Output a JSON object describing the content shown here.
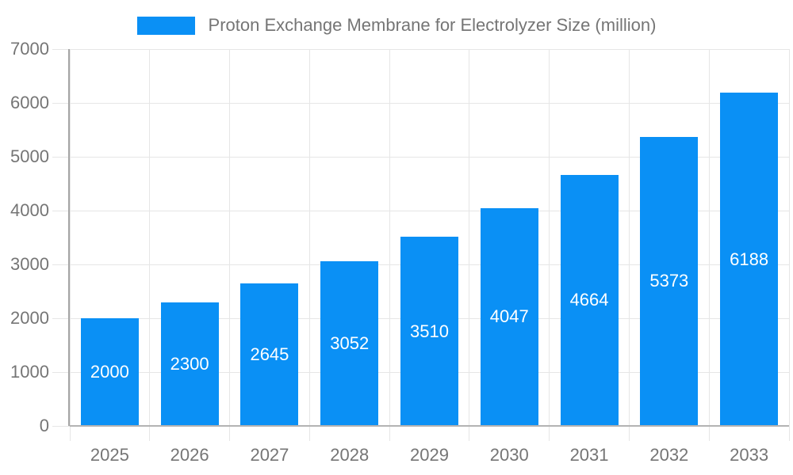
{
  "legend": {
    "label": "Proton Exchange Membrane for Electrolyzer Size (million)"
  },
  "chart_data": {
    "type": "bar",
    "title": "Proton Exchange Membrane for Electrolyzer Size (million)",
    "categories": [
      "2025",
      "2026",
      "2027",
      "2028",
      "2029",
      "2030",
      "2031",
      "2032",
      "2033"
    ],
    "values": [
      2000,
      2300,
      2645,
      3052,
      3510,
      4047,
      4664,
      5373,
      6188
    ],
    "bar_labels": [
      "2000",
      "2300",
      "2645",
      "3052",
      "3510",
      "4047",
      "4664",
      "5373",
      "6188"
    ],
    "xlabel": "",
    "ylabel": "",
    "ylim": [
      0,
      7000
    ],
    "ytick_step": 1000,
    "ytick_labels": [
      "0",
      "1000",
      "2000",
      "3000",
      "4000",
      "5000",
      "6000",
      "7000"
    ],
    "grid": true,
    "legend_position": "top",
    "colors": {
      "bar": "#0a90f5",
      "bar_label": "#ffffff",
      "axis_text": "#757575",
      "gridline": "#e6e6e6",
      "x_axis_line": "#b3b3b3",
      "y_axis_line": "#a6a6a6"
    }
  }
}
